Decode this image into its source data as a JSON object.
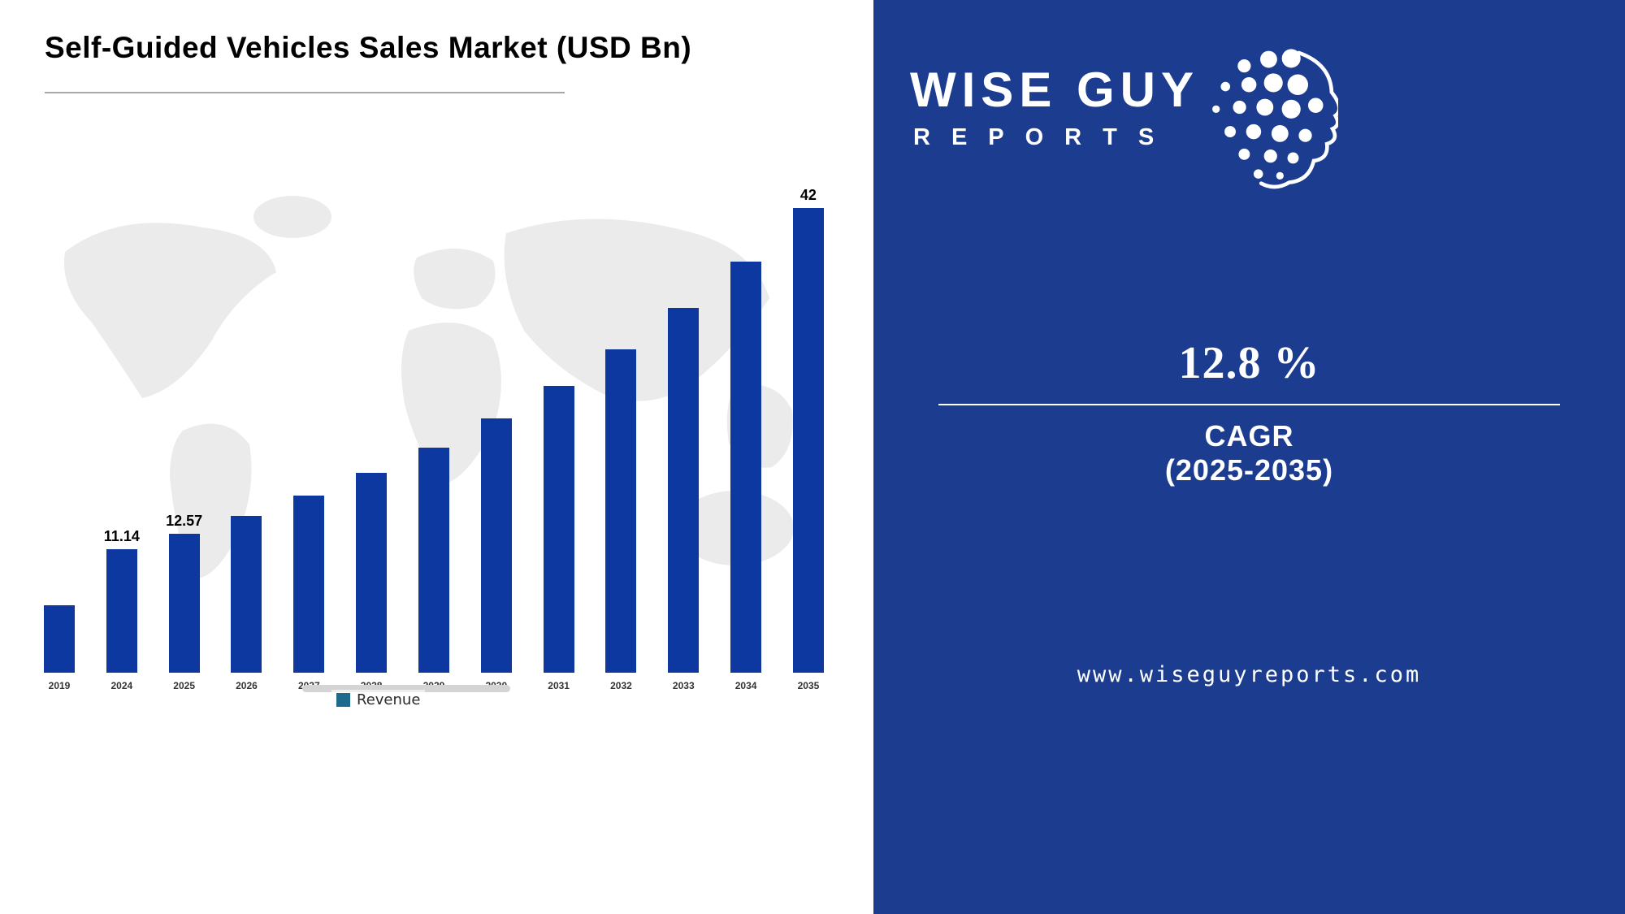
{
  "title": "Self-Guided Vehicles Sales Market (USD Bn)",
  "chart_data": {
    "type": "bar",
    "title": "Self-Guided Vehicles Sales Market (USD Bn)",
    "categories": [
      "2019",
      "2024",
      "2025",
      "2026",
      "2027",
      "2028",
      "2029",
      "2030",
      "2031",
      "2032",
      "2033",
      "2034",
      "2035"
    ],
    "values": [
      6.1,
      11.14,
      12.57,
      14.18,
      16.0,
      18.04,
      20.35,
      22.95,
      25.89,
      29.2,
      32.94,
      37.16,
      42
    ],
    "value_labels": [
      "",
      "11.14",
      "12.57",
      "",
      "",
      "",
      "",
      "",
      "",
      "",
      "",
      "",
      "42"
    ],
    "xlabel": "",
    "ylabel": "",
    "ylim": [
      0,
      45
    ],
    "grid": false,
    "legend": [
      "Revenue"
    ],
    "legend_position": "bottom",
    "bar_color": "#0c38a0"
  },
  "legend": {
    "revenue_label": "Revenue",
    "swatch_color": "#1d6a8e"
  },
  "panel": {
    "background_color": "#1c3c90",
    "logo_line1": "WISE GUY",
    "logo_line2": "REPORTS",
    "cagr_value": "12.8 %",
    "cagr_label": "CAGR",
    "cagr_range": "(2025-2035)",
    "website": "www.wiseguyreports.com"
  }
}
